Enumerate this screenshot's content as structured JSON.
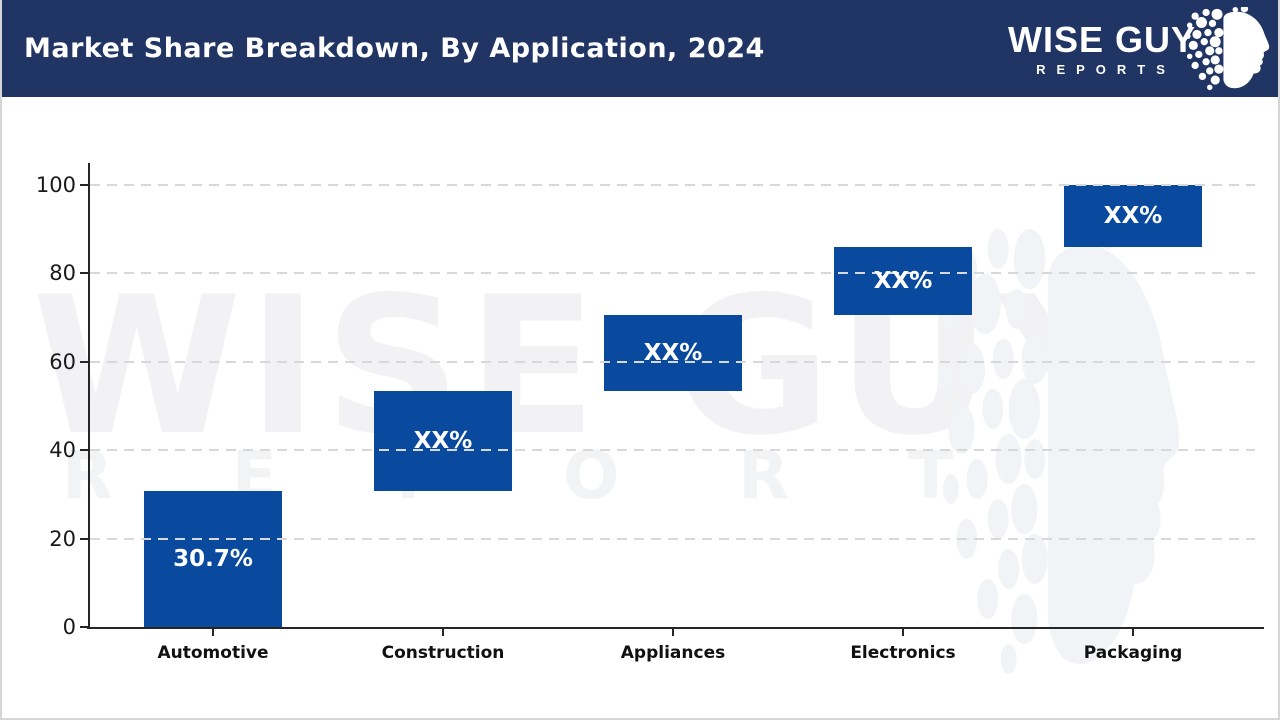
{
  "header": {
    "title": "Market Share Breakdown, By Application, 2024",
    "bg_color": "#213564",
    "logo": {
      "line1": "WISE GUY",
      "line2": "REPORTS",
      "icon": "dotted-face-profile-icon"
    }
  },
  "watermark": {
    "line1": "WISE GUY",
    "line2": "R E P O R T S"
  },
  "chart_data": {
    "type": "bar",
    "subtype": "waterfall",
    "title": "Market Share Breakdown, By Application, 2024",
    "categories": [
      "Automotive",
      "Construction",
      "Appliances",
      "Electronics",
      "Packaging"
    ],
    "segments": [
      {
        "category": "Automotive",
        "start": 0,
        "end": 30.7,
        "label": "30.7%"
      },
      {
        "category": "Construction",
        "start": 30.7,
        "end": 53.5,
        "label": "XX%"
      },
      {
        "category": "Appliances",
        "start": 53.5,
        "end": 70.7,
        "label": "XX%"
      },
      {
        "category": "Electronics",
        "start": 70.7,
        "end": 86.0,
        "label": "XX%"
      },
      {
        "category": "Packaging",
        "start": 86.0,
        "end": 100.0,
        "label": "XX%"
      }
    ],
    "xlabel": "",
    "ylabel": "",
    "ylim": [
      0,
      100
    ],
    "yticks": [
      0,
      20,
      40,
      60,
      80,
      100
    ],
    "grid": "horizontal-dashed",
    "legend": "none",
    "bar_color": "#0a4a9e",
    "value_label_color": "#ffffff"
  }
}
